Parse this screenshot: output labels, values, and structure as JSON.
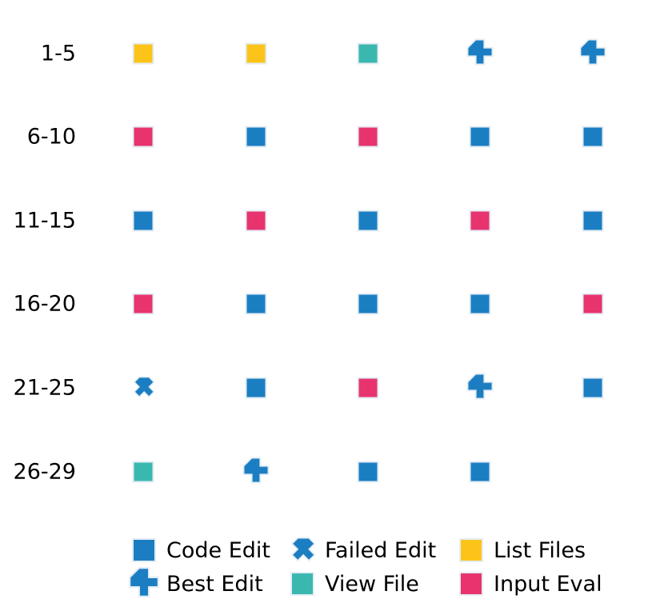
{
  "chart_data": {
    "type": "scatter",
    "title": "",
    "xlabel": "",
    "ylabel": "",
    "description": "Grid of per-step action markers grouped into step ranges, 5 steps per row (last row 4 steps), with a 3-column legend below",
    "background": "#FFFFFF",
    "text_color": "#000000",
    "marker_edge_color": "#E4EDF5",
    "rows": [
      {
        "label": "1-5",
        "markers": [
          "list_files",
          "list_files",
          "view_file",
          "best_edit",
          "best_edit"
        ]
      },
      {
        "label": "6-10",
        "markers": [
          "input_eval",
          "code_edit",
          "input_eval",
          "code_edit",
          "code_edit"
        ]
      },
      {
        "label": "11-15",
        "markers": [
          "code_edit",
          "input_eval",
          "code_edit",
          "input_eval",
          "code_edit"
        ]
      },
      {
        "label": "16-20",
        "markers": [
          "input_eval",
          "code_edit",
          "code_edit",
          "code_edit",
          "input_eval"
        ]
      },
      {
        "label": "21-25",
        "markers": [
          "failed_edit",
          "code_edit",
          "input_eval",
          "best_edit",
          "code_edit"
        ]
      },
      {
        "label": "26-29",
        "markers": [
          "view_file",
          "best_edit",
          "code_edit",
          "code_edit"
        ]
      }
    ],
    "marker_types": {
      "code_edit": {
        "label": "Code Edit",
        "shape": "square",
        "color": "#1C7EC2"
      },
      "failed_edit": {
        "label": "Failed Edit",
        "shape": "x",
        "color": "#1C7EC2"
      },
      "list_files": {
        "label": "List Files",
        "shape": "square",
        "color": "#FCC419"
      },
      "best_edit": {
        "label": "Best Edit",
        "shape": "plus",
        "color": "#1C7EC2"
      },
      "view_file": {
        "label": "View File",
        "shape": "square",
        "color": "#3AB8B0"
      },
      "input_eval": {
        "label": "Input Eval",
        "shape": "square",
        "color": "#E8336E"
      }
    },
    "legend": {
      "position": "bottom",
      "columns": 3,
      "order": [
        "code_edit",
        "failed_edit",
        "list_files",
        "best_edit",
        "view_file",
        "input_eval"
      ]
    }
  }
}
